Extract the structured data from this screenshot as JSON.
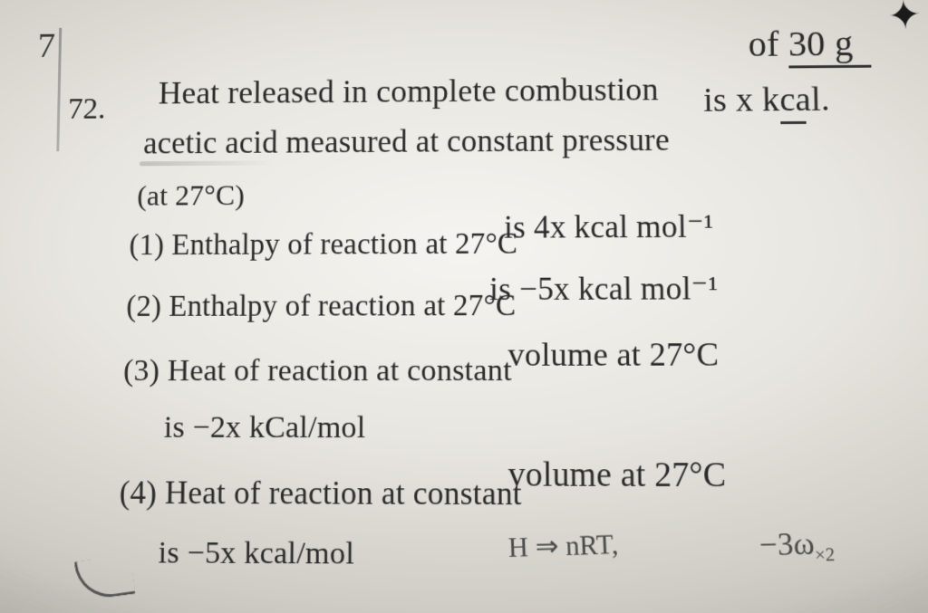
{
  "margin_number": "7",
  "question_number": "72.",
  "corner_glyph": "✦",
  "question": {
    "line1_left": "Heat released in complete combustion",
    "line1_right": "of 30 g",
    "line2_left": "acetic acid measured at constant pressure",
    "line2_right": "is x kcal.",
    "line3": "(at 27°C)"
  },
  "options": {
    "o1_left": "(1)  Enthalpy of reaction at 27°C",
    "o1_right": "is 4x kcal mol⁻¹",
    "o2_left": "(2)  Enthalpy of reaction at 27°C",
    "o2_right": "is −5x kcal mol⁻¹",
    "o3_left": "(3)  Heat of reaction at constant",
    "o3_right": "volume at 27°C",
    "o3_cont": "is −2x kCal/mol",
    "o4_left": "(4)  Heat of reaction at constant",
    "o4_right": "volume at 27°C",
    "o4_cont": "is −5x kcal/mol"
  },
  "handwriting": {
    "h1": "H ⇒ nRT,",
    "h2_main": "−3ω",
    "h2_sub": "×2"
  },
  "colors": {
    "ink": "#2a2a2a",
    "hand": "#4a4a4a",
    "paper_center": "#f5f4f0",
    "paper_edge": "#a09e98"
  }
}
